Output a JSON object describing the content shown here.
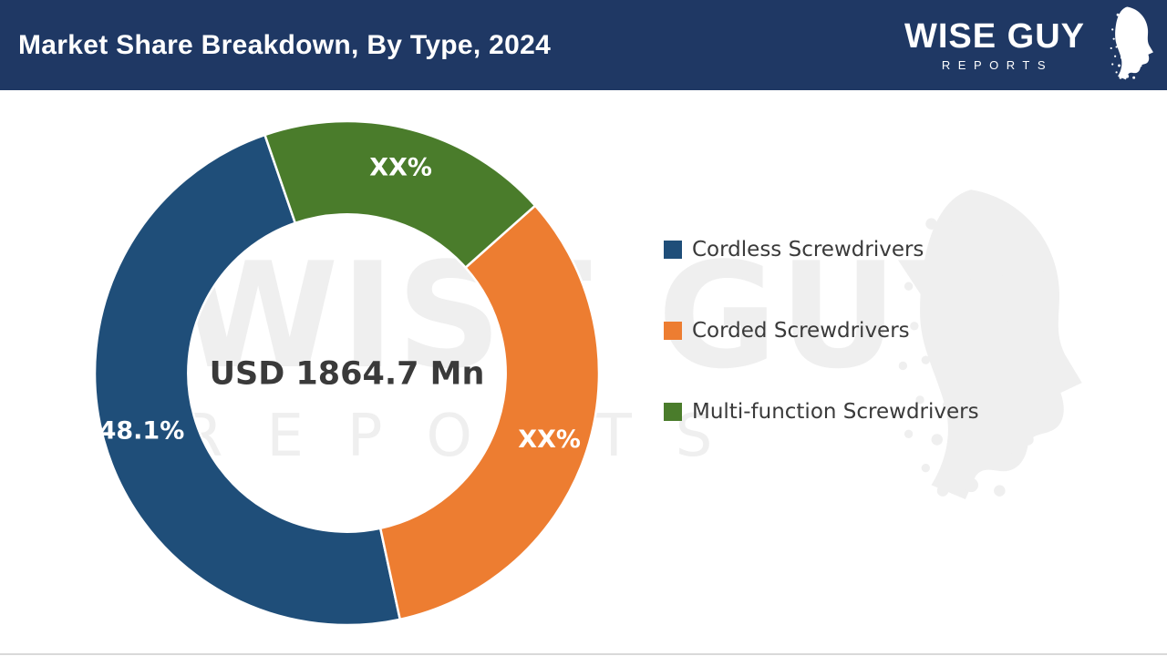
{
  "header": {
    "title": "Market Share Breakdown, By Type, 2024",
    "logo": {
      "line1": "WISE GUY",
      "line2": "REPORTS"
    }
  },
  "watermark": {
    "line1": "WISE GUY",
    "line2": "REPORTS"
  },
  "chart_data": {
    "type": "pie",
    "variant": "donut",
    "title": "Market Share Breakdown, By Type, 2024",
    "center_label": "USD 1864.7 Mn",
    "start_angle_deg": 109,
    "direction": "counterclockwise",
    "donut_hole_ratio": 0.63,
    "legend_position": "right",
    "slices": [
      {
        "name": "Cordless Screwdrivers",
        "value_pct": 48.1,
        "label": "48.1%",
        "color": "#1f4e79"
      },
      {
        "name": "Corded Screwdrivers",
        "value_pct": 33.2,
        "label": "XX%",
        "color": "#ed7d31"
      },
      {
        "name": "Multi-function Screwdrivers",
        "value_pct": 18.7,
        "label": "XX%",
        "color": "#4a7c2b"
      }
    ]
  },
  "legend": {
    "items": [
      {
        "label": "Cordless Screwdrivers",
        "color": "#1f4e79"
      },
      {
        "label": "Corded Screwdrivers",
        "color": "#ed7d31"
      },
      {
        "label": "Multi-function Screwdrivers",
        "color": "#4a7c2b"
      }
    ]
  },
  "colors": {
    "header_bg": "#1f3864",
    "text_dark": "#3a3a3a",
    "slice_label": "#ffffff",
    "separator": "#ffffff",
    "watermark": "#efefef",
    "bottom_line": "#d9d9d9"
  }
}
